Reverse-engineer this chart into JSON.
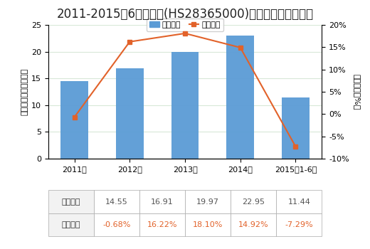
{
  "title": "2011-2015年6月碳酸钙(HS28365000)出口总额及增速统计",
  "categories": [
    "2011年",
    "2012年",
    "2013年",
    "2014年",
    "2015年1-6月"
  ],
  "bar_values": [
    14.55,
    16.91,
    19.97,
    22.95,
    11.44
  ],
  "line_values": [
    -0.0068,
    0.1622,
    0.181,
    0.1492,
    -0.0729
  ],
  "bar_color": "#5b9bd5",
  "line_color": "#e2622a",
  "bar_ylim": [
    0,
    25
  ],
  "bar_yticks": [
    0.0,
    5.0,
    10.0,
    15.0,
    20.0,
    25.0
  ],
  "line_ylim": [
    -0.1,
    0.2
  ],
  "line_yticks": [
    -0.1,
    -0.05,
    0.0,
    0.05,
    0.1,
    0.15,
    0.2
  ],
  "line_yticklabels": [
    "-10%",
    "-5%",
    "0%",
    "5%",
    "10%",
    "15%",
    "20%"
  ],
  "ylabel_left": "出口金额（百万美元）",
  "ylabel_right": "同比增长（%）",
  "legend_bar": "出口金额",
  "legend_line": "同比增长",
  "table_row1_label": "出口金额",
  "table_row2_label": "同比增长",
  "table_row1": [
    "14.55",
    "16.91",
    "19.97",
    "22.95",
    "11.44"
  ],
  "table_row2": [
    "-0.68%",
    "16.22%",
    "18.10%",
    "14.92%",
    "-7.29%"
  ],
  "background_color": "#ffffff",
  "grid_color": "#d8e8d8",
  "title_fontsize": 12,
  "axis_fontsize": 8,
  "table_fontsize": 8
}
